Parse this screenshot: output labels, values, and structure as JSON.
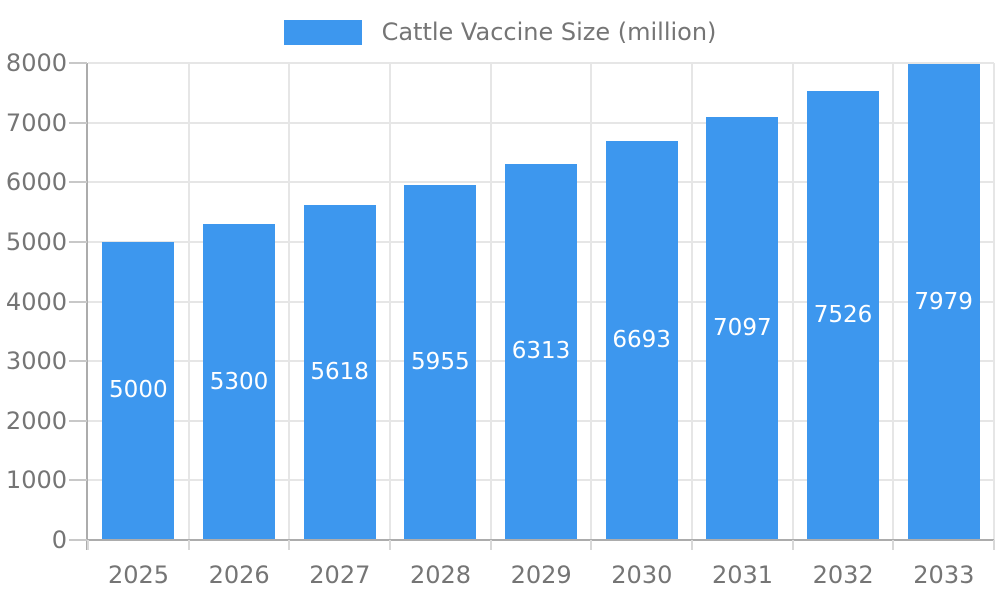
{
  "legend": {
    "label": "Cattle Vaccine Size (million)"
  },
  "chart_data": {
    "type": "bar",
    "title": "",
    "xlabel": "",
    "ylabel": "",
    "categories": [
      "2025",
      "2026",
      "2027",
      "2028",
      "2029",
      "2030",
      "2031",
      "2032",
      "2033"
    ],
    "series": [
      {
        "name": "Cattle Vaccine Size (million)",
        "values": [
          5000,
          5300,
          5618,
          5955,
          6313,
          6693,
          7097,
          7526,
          7979
        ]
      }
    ],
    "ylim": [
      0,
      8000
    ],
    "y_ticks": [
      0,
      1000,
      2000,
      3000,
      4000,
      5000,
      6000,
      7000,
      8000
    ],
    "grid": true,
    "grid_vertical_at_boundaries": true,
    "legend_position": "top-center",
    "value_labels": {
      "position": "inside-center",
      "color": "#FFFFFF"
    },
    "colors": {
      "bar": "#3D97EE",
      "axis_text": "#757575",
      "gridline": "#E6E6E6",
      "axis_line": "#ACACAC",
      "background": "#FFFFFF"
    }
  }
}
